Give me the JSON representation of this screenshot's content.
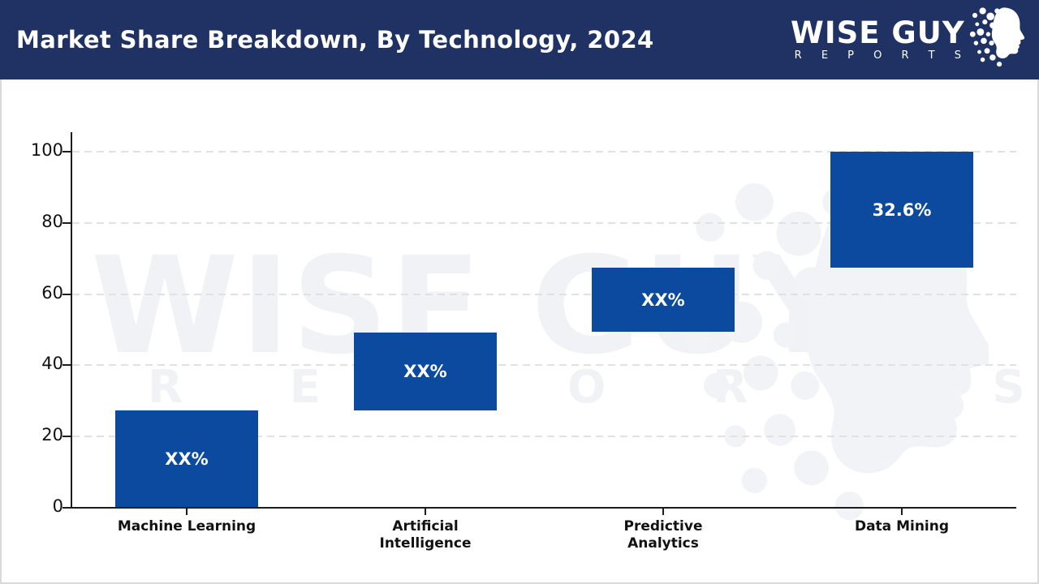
{
  "header": {
    "title": "Market Share Breakdown, By Technology, 2024",
    "logo": {
      "line1": "WISE GUY",
      "line2": "R E P O R T S"
    }
  },
  "watermark": {
    "line1": "WISE GUY",
    "line2": "R E P O R T S"
  },
  "colors": {
    "header_bg": "#1f3263",
    "bar": "#0b4a9e",
    "grid": "#e1e1e1",
    "axis": "#1c1c1c",
    "bar_label_text": "#ffffff",
    "watermark": "#f1f2f5"
  },
  "icons": {
    "logo_face": "dotted-face-profile"
  },
  "chart_data": {
    "type": "bar",
    "subtype": "waterfall-floating-bars",
    "title": "Market Share Breakdown, By Technology, 2024",
    "xlabel": "",
    "ylabel": "",
    "ylim": [
      0,
      100
    ],
    "yticks": [
      0,
      20,
      40,
      60,
      80,
      100
    ],
    "grid": "horizontal-dashed",
    "legend": "none",
    "categories": [
      "Machine Learning",
      "Artificial Intelligence",
      "Predictive Analytics",
      "Data Mining"
    ],
    "segments": [
      {
        "category": "Machine Learning",
        "category_lines": [
          "Machine Learning"
        ],
        "start": 0,
        "end": 27.3,
        "label": "XX%"
      },
      {
        "category": "Artificial Intelligence",
        "category_lines": [
          "Artificial",
          "Intelligence"
        ],
        "start": 27.3,
        "end": 49.2,
        "label": "XX%"
      },
      {
        "category": "Predictive Analytics",
        "category_lines": [
          "Predictive",
          "Analytics"
        ],
        "start": 49.4,
        "end": 67.4,
        "label": "XX%"
      },
      {
        "category": "Data Mining",
        "category_lines": [
          "Data Mining"
        ],
        "start": 67.4,
        "end": 100,
        "label": "32.6%"
      }
    ]
  }
}
